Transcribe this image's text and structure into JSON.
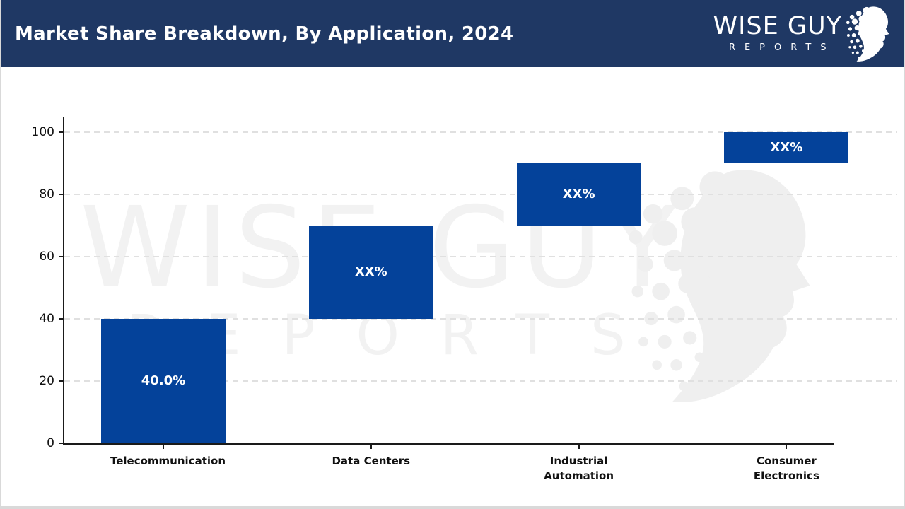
{
  "header": {
    "title": "Market Share Breakdown, By Application, 2024",
    "bg_color": "#1f3864",
    "logo": {
      "line1": "WISE GUY",
      "line2": "REPORTS"
    }
  },
  "watermark": {
    "line1": "WISE GUY",
    "line2": "REPORTS"
  },
  "chart_data": {
    "type": "bar",
    "variant": "waterfall",
    "title": "Market Share Breakdown, By Application, 2024",
    "categories": [
      "Telecommunication",
      "Data Centers",
      "Industrial Automation",
      "Consumer Electronics"
    ],
    "series": [
      {
        "name": "Market share (%)",
        "starts": [
          0,
          40,
          70,
          90
        ],
        "ends": [
          40,
          70,
          90,
          100
        ],
        "values": [
          40,
          30,
          20,
          10
        ]
      }
    ],
    "bar_labels": [
      "40.0%",
      "XX%",
      "XX%",
      "XX%"
    ],
    "xlabel": "",
    "ylabel": "",
    "ylim": [
      0,
      100
    ],
    "yticks": [
      0,
      20,
      40,
      60,
      80,
      100
    ],
    "grid": "horizontal-dashed",
    "legend": "none",
    "bar_color": "#04429a",
    "bar_label_color": "#ffffff",
    "axis_color": "#1a1a1a",
    "gridline_color": "#e0e0e0"
  }
}
